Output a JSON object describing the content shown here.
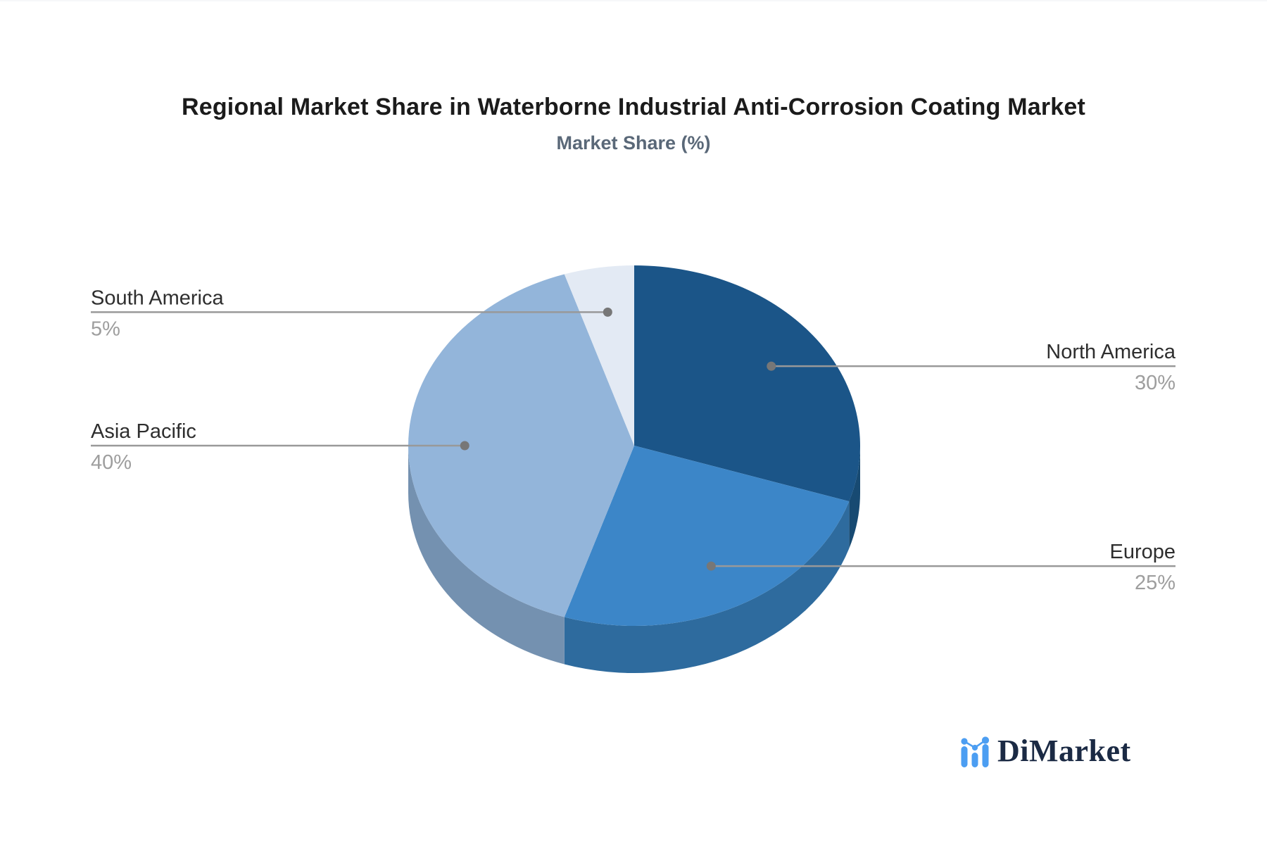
{
  "chart_data": {
    "type": "pie",
    "title": "Regional Market Share in Waterborne Industrial Anti-Corrosion Coating Market",
    "subtitle": "Market Share (%)",
    "unit": "%",
    "effect": "3d",
    "start_angle_deg": 0,
    "direction": "clockwise",
    "legend_position": "none",
    "slices": [
      {
        "label": "North America",
        "value": 30,
        "display": "30%",
        "color": "#1b5588",
        "side_color": "#174a72"
      },
      {
        "label": "Europe",
        "value": 25,
        "display": "25%",
        "color": "#3c86c8",
        "side_color": "#2e6b9e"
      },
      {
        "label": "Asia Pacific",
        "value": 40,
        "display": "40%",
        "color": "#93b5da",
        "side_color": "#7491b0"
      },
      {
        "label": "South America",
        "value": 5,
        "display": "5%",
        "color": "#e3eaf4",
        "side_color": "#c4cfdf"
      }
    ],
    "style": {
      "label_color": "#2e2e2e",
      "value_color": "#9e9e9e",
      "line_color": "#999999",
      "dot_color": "#777777"
    }
  },
  "logo": {
    "text": "DiMarket",
    "text_color": "#1b2a44",
    "icon": "bar-line-chart-icon",
    "icon_color": "#4c9ef2"
  }
}
